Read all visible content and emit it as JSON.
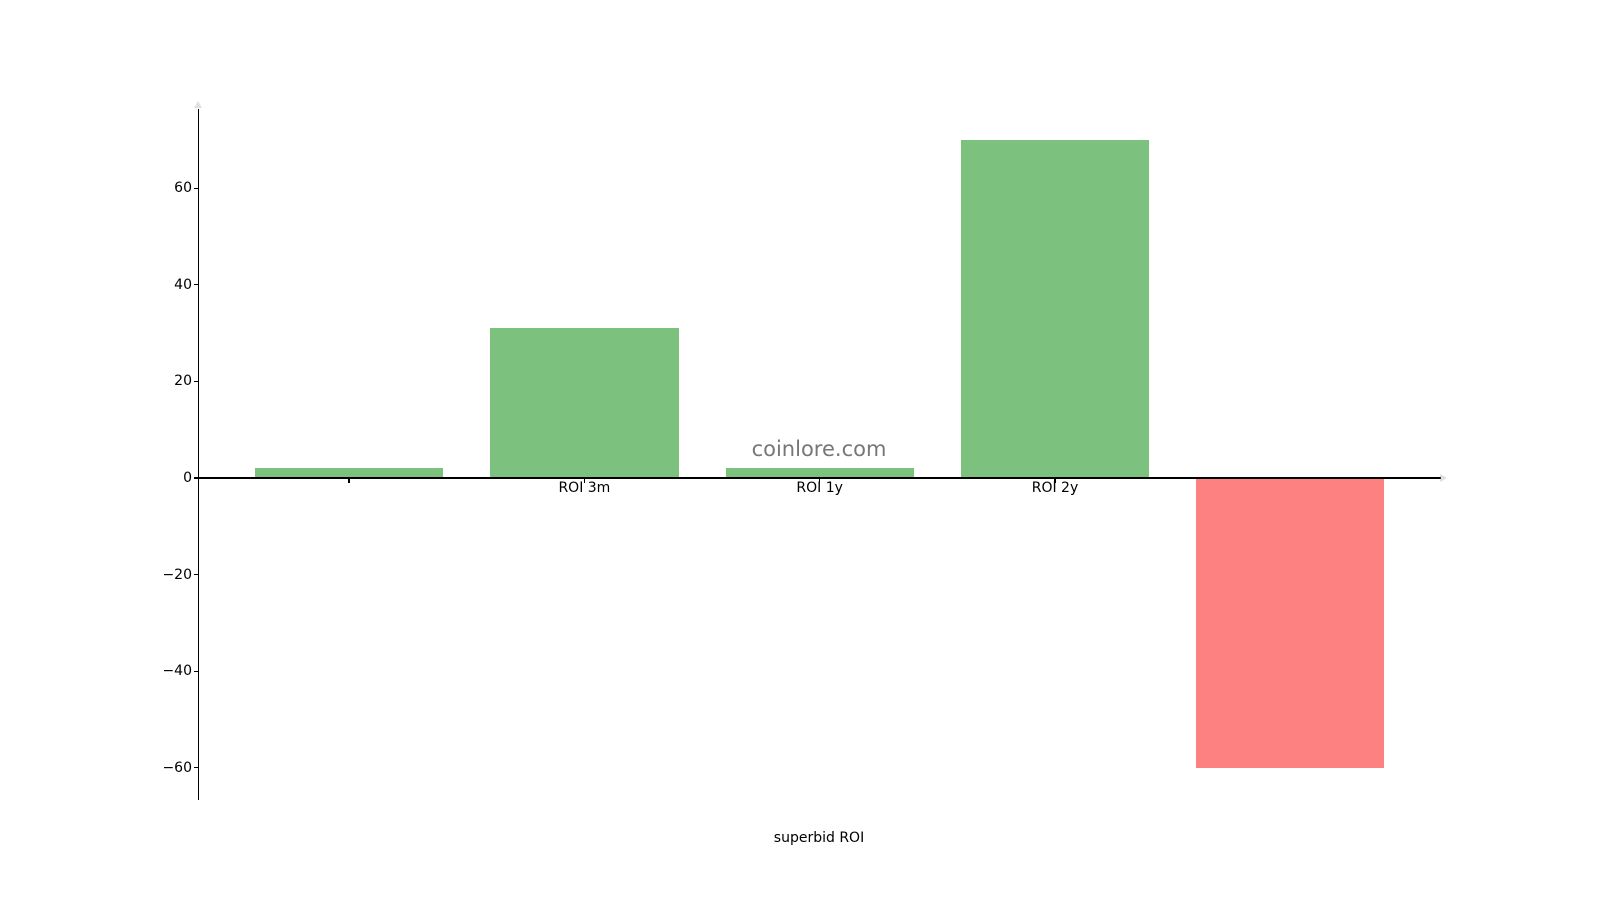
{
  "chart_data": {
    "type": "bar",
    "title": "superbid ROI",
    "watermark": "coinlore.com",
    "categories": [
      "",
      "ROI 3m",
      "ROI 1y",
      "ROI 2y",
      ""
    ],
    "values": [
      2,
      31,
      2,
      70,
      -60
    ],
    "bar_color_positive": "#7cc17e",
    "bar_color_negative": "#fd8181",
    "y_ticks": [
      60,
      40,
      20,
      0,
      -20,
      -40,
      -60
    ],
    "y_tick_labels": [
      "60",
      "40",
      "20",
      "0",
      "−20",
      "−40",
      "−60"
    ],
    "ylim": [
      -66.5,
      76.5
    ],
    "xlabel": "",
    "ylabel": "",
    "grid": false,
    "legend_position": "none",
    "axis_color": "#000000",
    "text_color": "#000000",
    "watermark_color": "#777777",
    "background_color": "#ffffff"
  }
}
